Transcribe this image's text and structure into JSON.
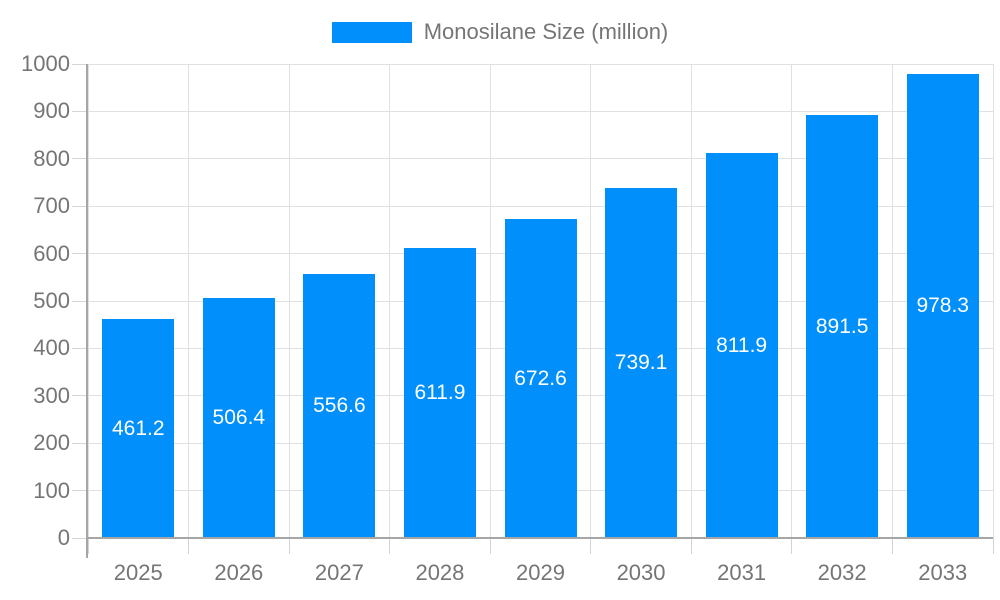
{
  "legend": {
    "label": "Monosilane Size (million)"
  },
  "chart_data": {
    "type": "bar",
    "title": "Monosilane Size (million)",
    "categories": [
      "2025",
      "2026",
      "2027",
      "2028",
      "2029",
      "2030",
      "2031",
      "2032",
      "2033"
    ],
    "series": [
      {
        "name": "Monosilane Size (million)",
        "values": [
          461.2,
          506.4,
          556.6,
          611.9,
          672.6,
          739.1,
          811.9,
          891.5,
          978.3
        ]
      }
    ],
    "value_label_decimals": 1,
    "xlabel": "",
    "ylabel": "",
    "ylim": [
      0,
      1000
    ],
    "ytick_step": 100,
    "ytick_labels": [
      "0",
      "100",
      "200",
      "300",
      "400",
      "500",
      "600",
      "700",
      "800",
      "900",
      "1000"
    ],
    "grid": true,
    "legend_position": "top",
    "colors": {
      "bar": "#008FFB",
      "axis_label": "#757575",
      "legend_text": "#757575",
      "grid_line": "#e0e0e0",
      "tick_line": "#d4d4d4",
      "axis_line": "#a6a6a6",
      "value_label": "#ffffff",
      "background": "#ffffff"
    }
  }
}
